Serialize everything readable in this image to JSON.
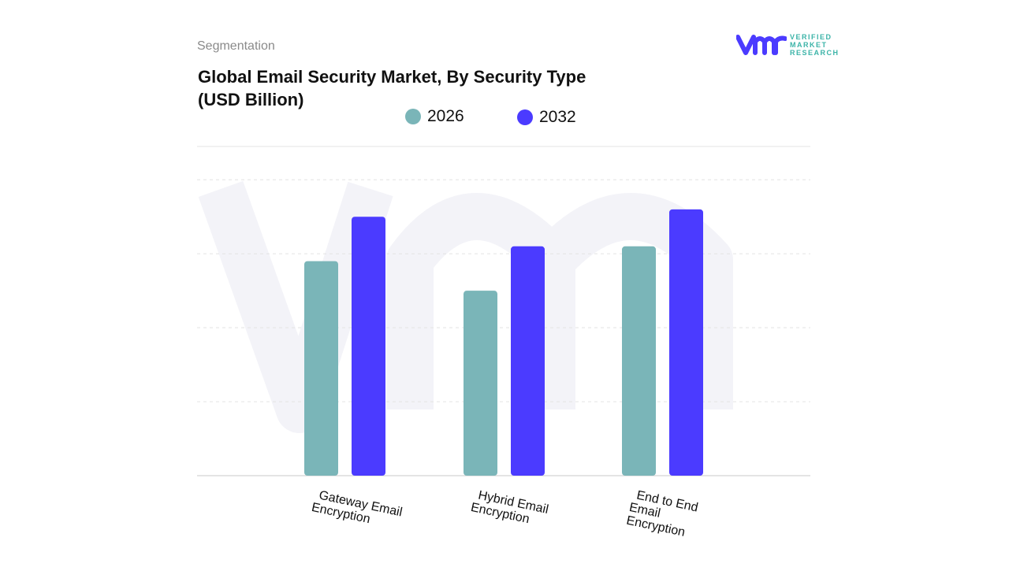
{
  "header": {
    "segment_label": "Segmentation",
    "title_line1": "Global Email Security Market, By Security Type",
    "title_line2": "(USD Billion)"
  },
  "logo": {
    "text_line1": "VERIFIED",
    "text_line2": "MARKET",
    "text_line3": "RESEARCH",
    "mark": "vmr"
  },
  "colors": {
    "s2026": "#7ab5b8",
    "s2032": "#4b3bff",
    "grid": "#e3e3e3",
    "logo": "#4b3bff"
  },
  "chart_data": {
    "type": "bar",
    "title": "Global Email Security Market, By Security Type (USD Billion)",
    "categories": [
      "Gateway Email Encryption",
      "Hybrid Email Encryption",
      "End to End Email Encryption"
    ],
    "category_lines": [
      [
        "Gateway Email",
        "Encryption"
      ],
      [
        "Hybrid Email",
        "Encryption"
      ],
      [
        "End to End",
        "Email",
        "Encryption"
      ]
    ],
    "series": [
      {
        "name": "2026",
        "values": [
          2.9,
          2.5,
          3.1
        ]
      },
      {
        "name": "2032",
        "values": [
          3.5,
          3.1,
          3.6
        ]
      }
    ],
    "ylim": [
      0,
      4.45
    ],
    "grid": true,
    "legend_placement": "top-center",
    "xlabel": "",
    "ylabel": ""
  }
}
